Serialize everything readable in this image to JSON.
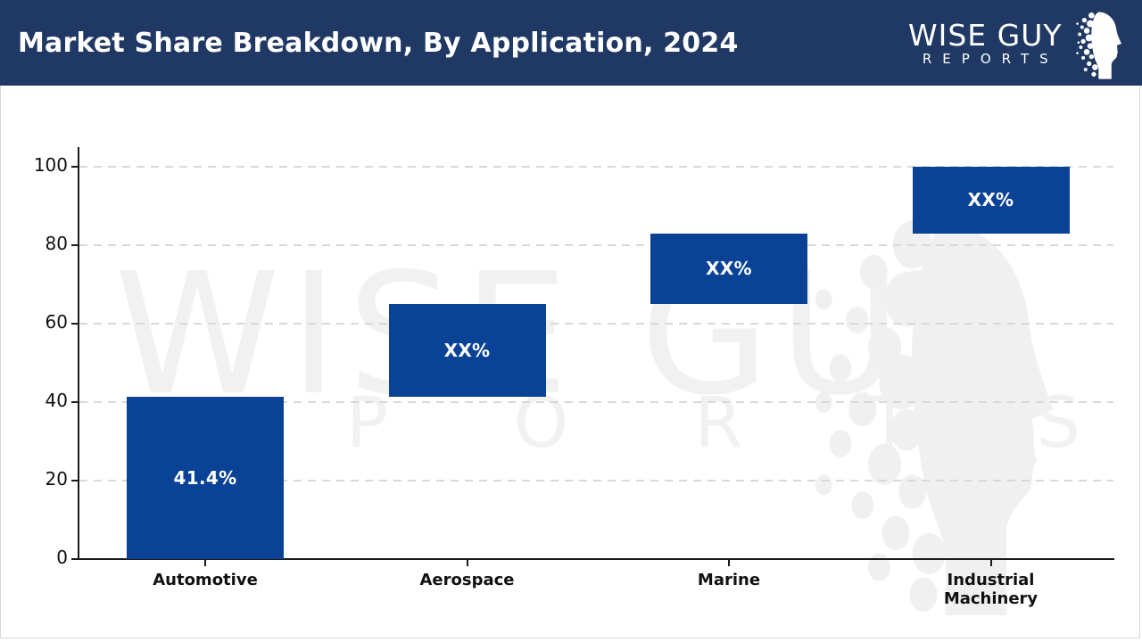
{
  "header": {
    "title": "Market Share Breakdown, By Application, 2024",
    "bg_color": "#1f3864",
    "logo": {
      "line1": "WISE GUY",
      "line2": "REPORTS"
    }
  },
  "watermark": {
    "line1": "WISE GUY",
    "line2": "PORTS"
  },
  "chart_data": {
    "type": "bar",
    "variant": "floating-waterfall",
    "title": "Market Share Breakdown, By Application, 2024",
    "categories": [
      "Automotive",
      "Aerospace",
      "Marine",
      "Industrial Machinery"
    ],
    "segments": [
      {
        "category": "Automotive",
        "start": 0,
        "end": 41.4,
        "label": "41.4%"
      },
      {
        "category": "Aerospace",
        "start": 41.4,
        "end": 65,
        "label": "XX%"
      },
      {
        "category": "Marine",
        "start": 65,
        "end": 83,
        "label": "XX%"
      },
      {
        "category": "Industrial Machinery",
        "start": 83,
        "end": 100,
        "label": "XX%"
      }
    ],
    "ylim": [
      0,
      100
    ],
    "yticks": [
      0,
      20,
      40,
      60,
      80,
      100
    ],
    "xlabel": "",
    "ylabel": "",
    "grid": "horizontal-dashed",
    "legend": "none",
    "bar_color": "#0a4296",
    "bar_label_color": "#ffffff",
    "gridline_color": "#d8d8d8",
    "axis_color": "#1a1a1a"
  }
}
